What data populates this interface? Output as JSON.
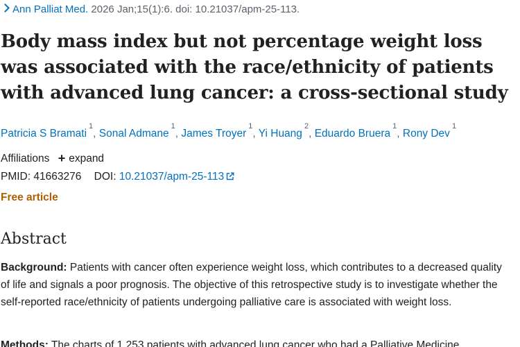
{
  "citation": {
    "journal": "Ann Palliat Med.",
    "details": "2026 Jan;15(1):6. doi: 10.21037/apm-25-113."
  },
  "title": "Body mass index but not percentage weight loss was associated with the race/ethnicity of patients with advanced lung cancer: a cross-sectional study",
  "authors": [
    {
      "name": "Patricia S Bramati",
      "aff": "1"
    },
    {
      "name": "Sonal Admane",
      "aff": "1"
    },
    {
      "name": "James Troyer",
      "aff": "1"
    },
    {
      "name": "Yi Huang",
      "aff": "2"
    },
    {
      "name": "Eduardo Bruera",
      "aff": "1"
    },
    {
      "name": "Rony Dev",
      "aff": "1"
    }
  ],
  "affiliations": {
    "label": "Affiliations",
    "expand_label": "expand"
  },
  "ids": {
    "pmid_label": "PMID:",
    "pmid": "41663276",
    "doi_label": "DOI:",
    "doi": "10.21037/apm-25-113"
  },
  "free_article": "Free article",
  "abstract": {
    "heading": "Abstract",
    "background_label": "Background:",
    "background_text": "Patients with cancer often experience weight loss, which contributes to a decreased quality of life and signals a poor prognosis. The objective of this retrospective study is to investigate whether the self-reported race/ethnicity of patients undergoing palliative care is associated with weight loss.",
    "methods_label": "Methods:",
    "methods_text": "The charts of 1,253 patients with advanced lung cancer who had a Palliative Medicine"
  },
  "colors": {
    "link": "#0071bc",
    "free": "#b05f00",
    "text": "#212121",
    "muted": "#5b616b"
  }
}
